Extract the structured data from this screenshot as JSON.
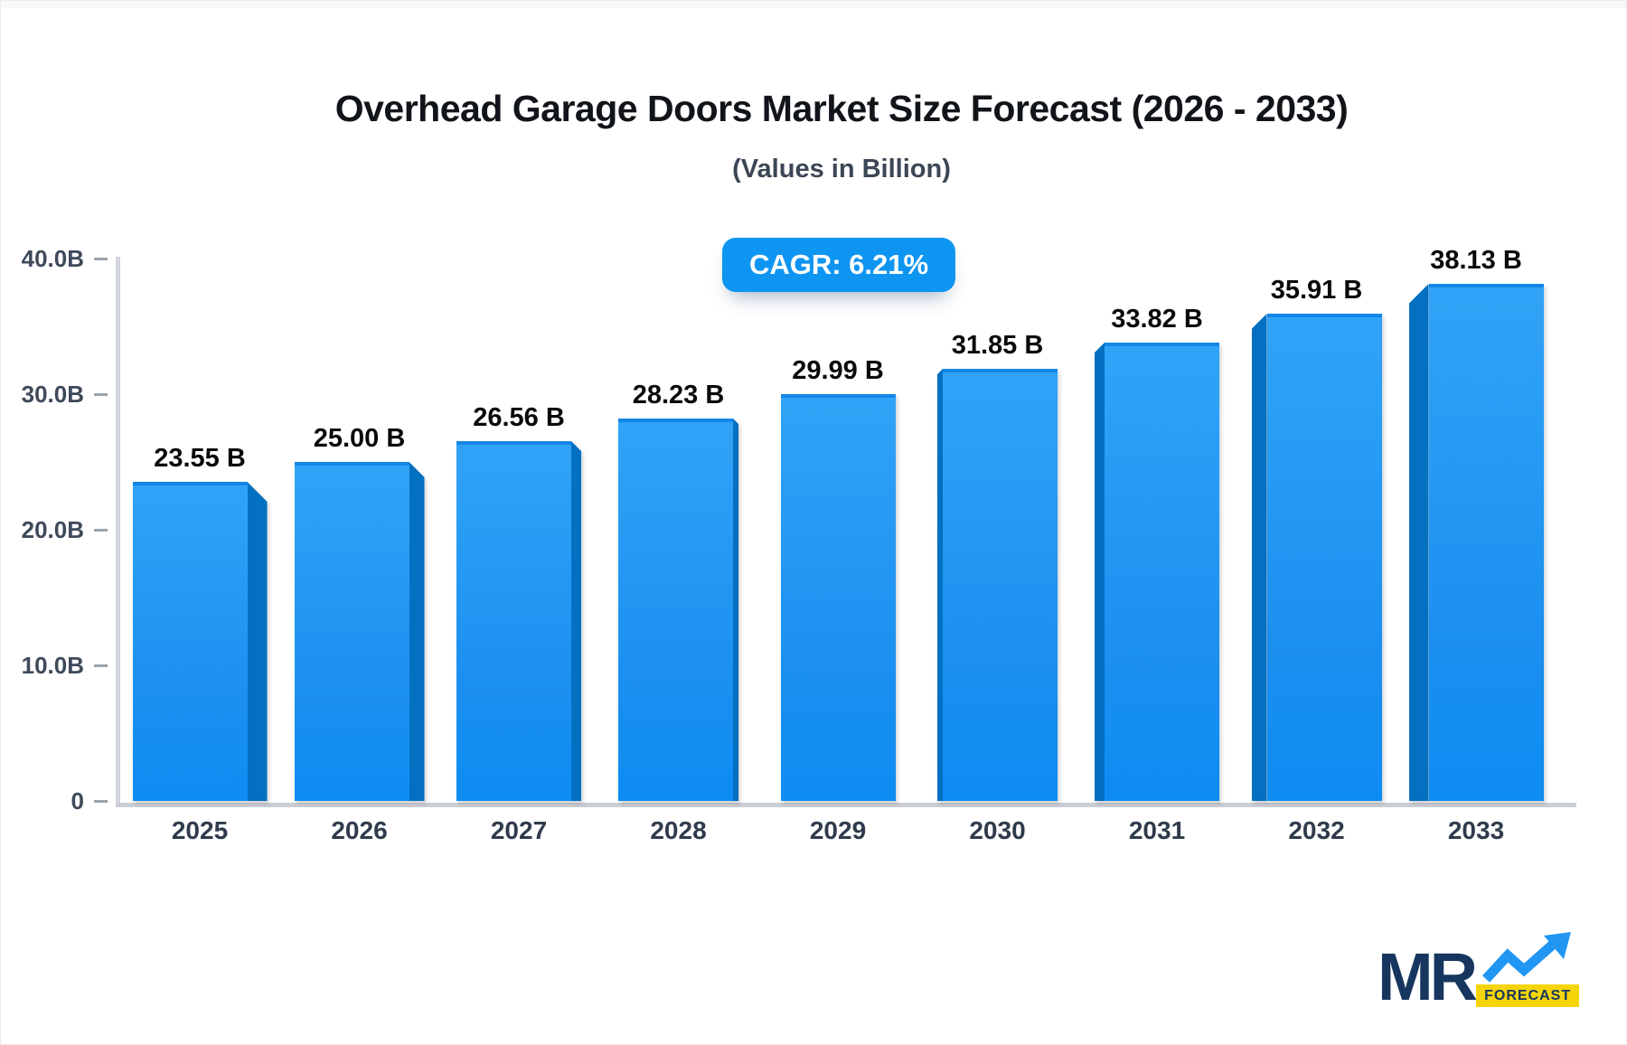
{
  "title": "Overhead Garage Doors Market Size Forecast (2026 - 2033)",
  "subtitle": "(Values in Billion)",
  "cagr_badge_label": "CAGR: 6.21%",
  "chart_data": {
    "type": "bar",
    "title": "Overhead Garage Doors Market Size Forecast (2026 - 2033)",
    "subtitle": "(Values in Billion)",
    "unit": "Billion",
    "cagr": "6.21%",
    "categories": [
      "2025",
      "2026",
      "2027",
      "2028",
      "2029",
      "2030",
      "2031",
      "2032",
      "2033"
    ],
    "values": [
      23.55,
      25.0,
      26.56,
      28.23,
      29.99,
      31.85,
      33.82,
      35.91,
      38.13
    ],
    "bar_labels": [
      "23.55 B",
      "25.00 B",
      "26.56 B",
      "28.23 B",
      "29.99 B",
      "31.85 B",
      "33.82 B",
      "35.91 B",
      "38.13 B"
    ],
    "ylim": [
      0,
      40
    ],
    "yticks": [
      {
        "value": 40,
        "label": "40.0B"
      },
      {
        "value": 30,
        "label": "30.0B"
      },
      {
        "value": 20,
        "label": "20.0B"
      },
      {
        "value": 10,
        "label": "10.0B"
      },
      {
        "value": 0,
        "label": "0"
      }
    ],
    "grid": false,
    "legend": false
  },
  "colors": {
    "bar_face_light": "#31A3F7",
    "bar_face_dark": "#1A8FF0",
    "bar_top_edge": "#1486E8",
    "bar_side": "#0470C2",
    "badge_bg": "#0E95F2",
    "axis_line": "#D2D6DC",
    "tick_text": "#3E4A5B",
    "value_text": "#0A0A0A",
    "logo_navy": "#17365F",
    "logo_yellow": "#F5D50A",
    "logo_arrow": "#2196F3"
  },
  "logo": {
    "mr": "MR",
    "forecast": "FORECAST"
  }
}
